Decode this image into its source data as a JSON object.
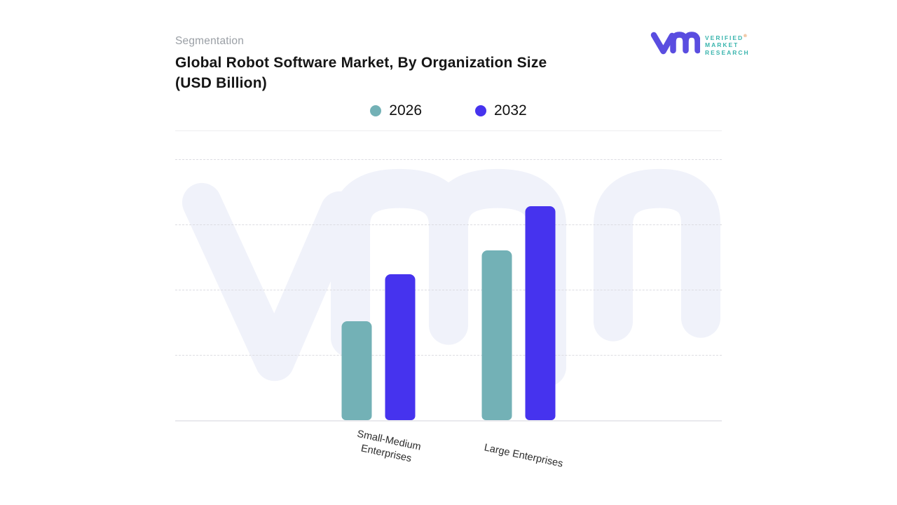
{
  "header": {
    "eyebrow": "Segmentation",
    "title_line1": "Global Robot Software Market, By Organization Size",
    "title_line2": "(USD Billion)"
  },
  "logo": {
    "name": "Verified Market Research",
    "lines": [
      "VERIFIED",
      "MARKET",
      "RESEARCH"
    ],
    "registered": "®",
    "mark_color": "#5a4de0",
    "text_color": "#3bb5ae"
  },
  "chart_data": {
    "type": "bar",
    "title": "Global Robot Software Market, By Organization Size (USD Billion)",
    "categories": [
      "Small-Medium\nEnterprises",
      "Large Enterprises"
    ],
    "series": [
      {
        "name": "2026",
        "color": "#73b1b6",
        "values": [
          38,
          65
        ]
      },
      {
        "name": "2032",
        "color": "#4633ee",
        "values": [
          56,
          82
        ]
      }
    ],
    "xlabel": "",
    "ylabel": "",
    "ylim": [
      0,
      100
    ],
    "y_axis_labels_visible": false,
    "grid": "horizontal dashed lines, no y tick labels",
    "legend_position": "top-center"
  },
  "watermark": {
    "text": "vmr",
    "color": "#f0f2fa"
  }
}
